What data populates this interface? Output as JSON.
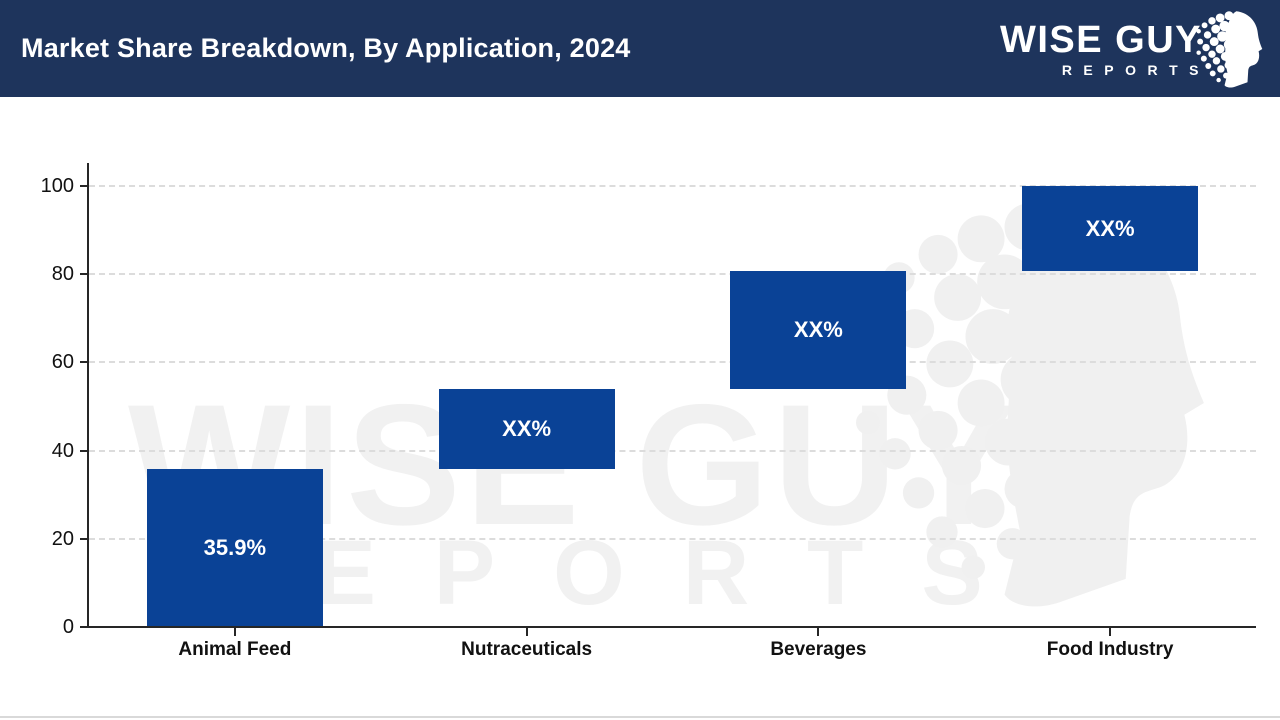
{
  "header": {
    "title": "Market Share Breakdown, By Application, 2024",
    "logo": {
      "wordmark": "WISE GUY",
      "subtext": "REPORTS"
    }
  },
  "watermark": {
    "line1": "WISE GUY",
    "line2": "REPORTS"
  },
  "colors": {
    "header_bg": "#1e345c",
    "bar_fill": "#0a4296",
    "bar_label_text": "#ffffff",
    "axis_text": "#111111",
    "gridline": "#dcdcdc",
    "watermark": "#f1f1f1"
  },
  "chart_data": {
    "type": "bar",
    "subtype": "waterfall",
    "title": "Market Share Breakdown, By Application, 2024",
    "xlabel": "",
    "ylabel": "",
    "ylim": [
      0,
      100
    ],
    "yticks": [
      0,
      20,
      40,
      60,
      80,
      100
    ],
    "grid": "horizontal-dashed",
    "legend": "none",
    "categories": [
      "Animal Feed",
      "Nutraceuticals",
      "Beverages",
      "Food Industry"
    ],
    "segments": [
      {
        "category": "Animal Feed",
        "start": 0,
        "end": 35.9,
        "label": "35.9%"
      },
      {
        "category": "Nutraceuticals",
        "start": 35.9,
        "end": 54.0,
        "label": "XX%"
      },
      {
        "category": "Beverages",
        "start": 54.0,
        "end": 80.7,
        "label": "XX%"
      },
      {
        "category": "Food Industry",
        "start": 80.7,
        "end": 100.0,
        "label": "XX%"
      }
    ]
  }
}
